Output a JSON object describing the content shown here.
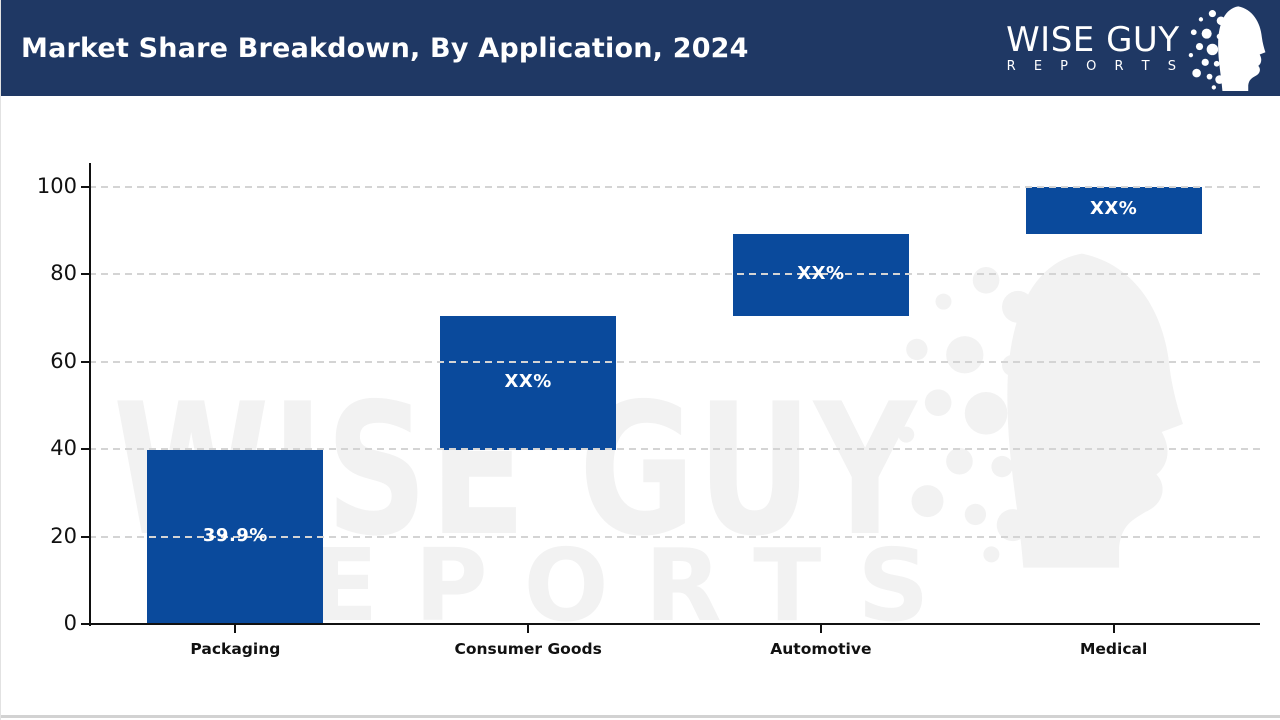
{
  "header": {
    "title": "Market Share Breakdown, By Application, 2024",
    "logo": {
      "name": "WISE GUY",
      "subtext": "R E P O R T S"
    }
  },
  "watermark": {
    "line1": "WISE GUY",
    "line2": "REPORTS"
  },
  "colors": {
    "header_bg": "#1f3864",
    "bar_fill": "#0a4a9c",
    "bar_label_text": "#ffffff",
    "gridline": "#d4d4d4",
    "axis": "#111111",
    "watermark": "#f2f2f2"
  },
  "chart_data": {
    "type": "bar",
    "variant": "waterfall",
    "title": "Market Share Breakdown, By Application, 2024",
    "xlabel": "",
    "ylabel": "",
    "categories": [
      "Packaging",
      "Consumer Goods",
      "Automotive",
      "Medical"
    ],
    "segments": [
      {
        "category": "Packaging",
        "start": 0,
        "end": 39.9,
        "estimated_value": 39.9,
        "label": "39.9%"
      },
      {
        "category": "Consumer Goods",
        "start": 39.9,
        "end": 70.4,
        "estimated_value": 30.5,
        "label": "XX%"
      },
      {
        "category": "Automotive",
        "start": 70.4,
        "end": 89.3,
        "estimated_value": 18.9,
        "label": "XX%"
      },
      {
        "category": "Medical",
        "start": 89.3,
        "end": 100,
        "estimated_value": 10.7,
        "label": "XX%"
      }
    ],
    "yticks": [
      0,
      20,
      40,
      60,
      80,
      100
    ],
    "ylim": [
      0,
      105.4
    ],
    "grid": {
      "horizontal": true,
      "style": "dashed",
      "over_bars": true
    },
    "legend": "none"
  }
}
